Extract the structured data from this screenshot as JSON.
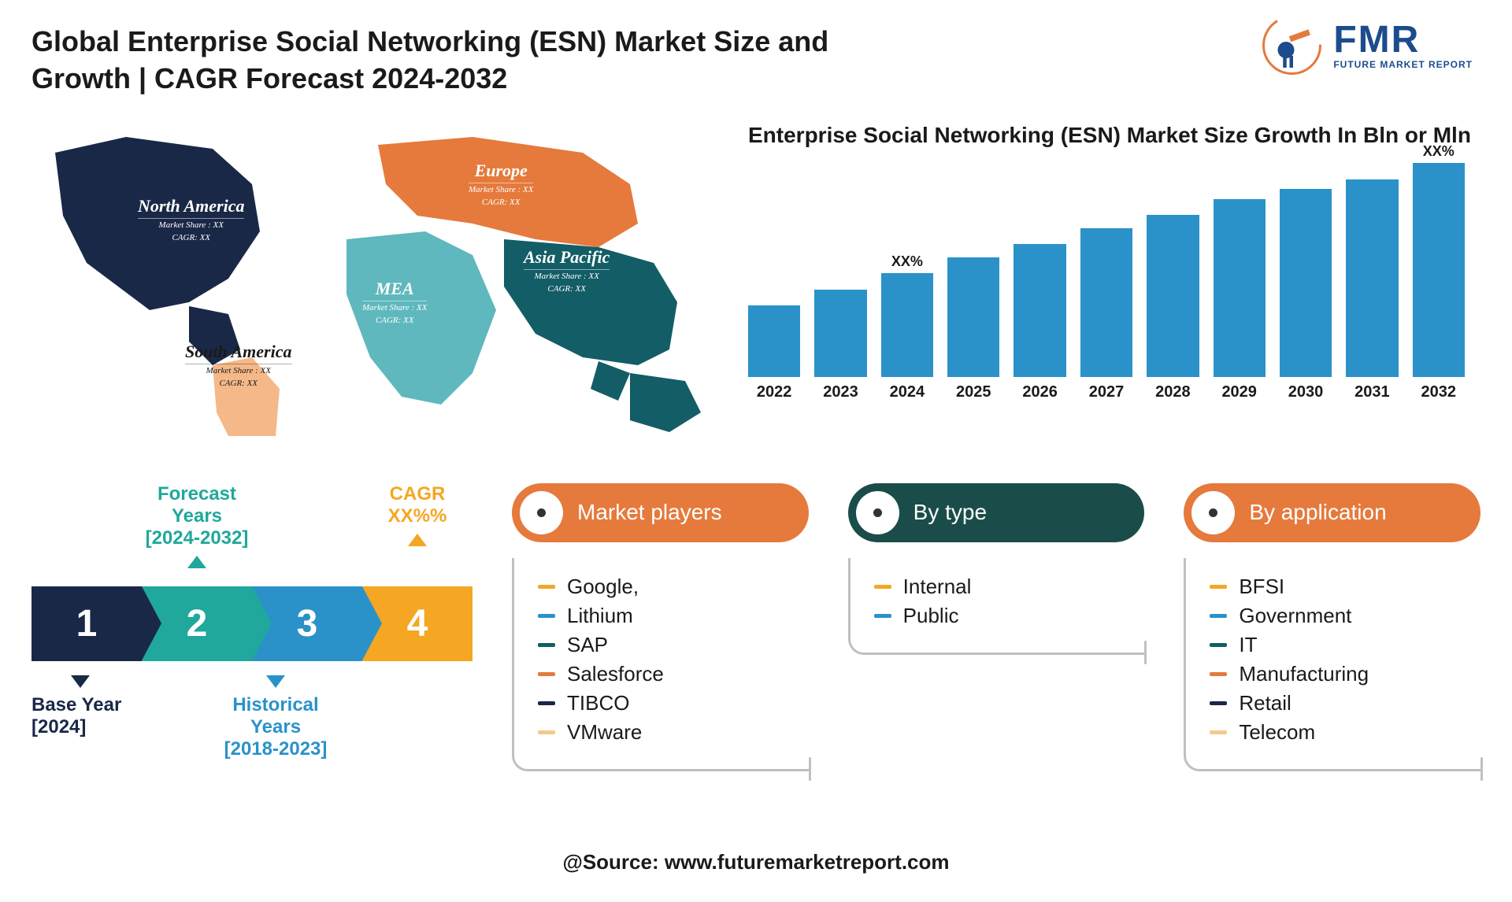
{
  "title": "Global Enterprise Social Networking (ESN) Market Size and Growth | CAGR Forecast 2024-2032",
  "logo": {
    "main": "FMR",
    "sub": "FUTURE MARKET REPORT"
  },
  "map": {
    "regions": [
      {
        "id": "na",
        "name": "North America",
        "share": "Market Share : XX",
        "cagr": "CAGR: XX",
        "color": "#1a2847"
      },
      {
        "id": "sa",
        "name": "South America",
        "share": "Market Share : XX",
        "cagr": "CAGR: XX",
        "color": "#f5b888"
      },
      {
        "id": "eu",
        "name": "Europe",
        "share": "Market Share : XX",
        "cagr": "CAGR: XX",
        "color": "#e57a3c"
      },
      {
        "id": "mea",
        "name": "MEA",
        "share": "Market Share : XX",
        "cagr": "CAGR: XX",
        "color": "#5fb8bd"
      },
      {
        "id": "ap",
        "name": "Asia Pacific",
        "share": "Market Share : XX",
        "cagr": "CAGR: XX",
        "color": "#135d66"
      }
    ]
  },
  "chart": {
    "title": "Enterprise Social Networking (ESN) Market Size Growth In Bln or Mln",
    "type": "bar",
    "categories": [
      "2022",
      "2023",
      "2024",
      "2025",
      "2026",
      "2027",
      "2028",
      "2029",
      "2030",
      "2031",
      "2032"
    ],
    "values": [
      110,
      135,
      160,
      185,
      205,
      230,
      250,
      275,
      290,
      305,
      330
    ],
    "bar_color": "#2a92c9",
    "annotations": [
      {
        "index": 2,
        "text": "XX%"
      },
      {
        "index": 10,
        "text": "XX%"
      }
    ],
    "ylim": [
      0,
      340
    ],
    "background_color": "#ffffff",
    "label_fontsize": 20
  },
  "timeline": {
    "forecast": {
      "label": "Forecast Years",
      "range": "[2024-2032]",
      "color": "#1fa89b"
    },
    "cagr": {
      "label": "CAGR",
      "value": "XX%%",
      "color": "#f5a623"
    },
    "base": {
      "label": "Base Year",
      "range": "[2024]",
      "color": "#1a2847"
    },
    "historical": {
      "label": "Historical Years",
      "range": "[2018-2023]",
      "color": "#2a92c9"
    },
    "segments": [
      "1",
      "2",
      "3",
      "4"
    ]
  },
  "categories": [
    {
      "title": "Market players",
      "header_color": "#e57a3c",
      "items": [
        {
          "label": "Google,",
          "marker": "#f5a623"
        },
        {
          "label": "Lithium",
          "marker": "#2a92c9"
        },
        {
          "label": "SAP",
          "marker": "#135d66"
        },
        {
          "label": "Salesforce",
          "marker": "#e57a3c"
        },
        {
          "label": "TIBCO",
          "marker": "#1a2847"
        },
        {
          "label": "VMware",
          "marker": "#f5c98b"
        }
      ]
    },
    {
      "title": "By type",
      "header_color": "#1a4d4a",
      "items": [
        {
          "label": "Internal",
          "marker": "#f5a623"
        },
        {
          "label": "Public",
          "marker": "#2a92c9"
        }
      ]
    },
    {
      "title": "By application",
      "header_color": "#e57a3c",
      "items": [
        {
          "label": "BFSI",
          "marker": "#f5a623"
        },
        {
          "label": "Government",
          "marker": "#2a92c9"
        },
        {
          "label": "IT",
          "marker": "#135d66"
        },
        {
          "label": "Manufacturing",
          "marker": "#e57a3c"
        },
        {
          "label": "Retail",
          "marker": "#1a2847"
        },
        {
          "label": "Telecom",
          "marker": "#f5c98b"
        }
      ]
    }
  ],
  "source": "@Source: www.futuremarketreport.com"
}
